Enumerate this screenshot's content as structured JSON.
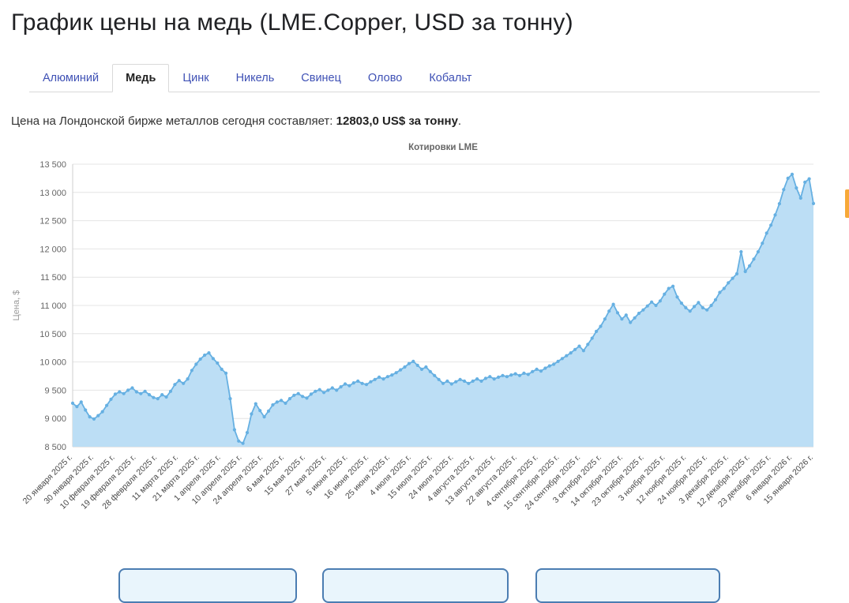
{
  "page": {
    "title": "График цены на медь (LME.Copper, USD за тонну)",
    "intro_prefix": "Цена на Лондонской бирже металлов сегодня составляет: ",
    "intro_bold": "12803,0 US$ за тонну",
    "intro_suffix": "."
  },
  "tabs": [
    {
      "label": "Алюминий",
      "active": false
    },
    {
      "label": "Медь",
      "active": true
    },
    {
      "label": "Цинк",
      "active": false
    },
    {
      "label": "Никель",
      "active": false
    },
    {
      "label": "Свинец",
      "active": false
    },
    {
      "label": "Олово",
      "active": false
    },
    {
      "label": "Кобальт",
      "active": false
    }
  ],
  "footer": {
    "bottom_buttons_count": 3
  },
  "colors": {
    "tab_link": "#3f51b5",
    "edge_marker": "#f7a938",
    "button_border": "#4b7db2"
  },
  "chart_data": {
    "type": "area",
    "title": "Котировки LME",
    "ylabel": "Цена, $",
    "xlabel": "",
    "grid": true,
    "legend": "none",
    "marker": "circle",
    "ylim": [
      8500,
      13500
    ],
    "ytick_step": 500,
    "ytick_labels": [
      "8 500",
      "9 000",
      "9 500",
      "10 000",
      "10 500",
      "11 000",
      "11 500",
      "12 000",
      "12 500",
      "13 000",
      "13 500"
    ],
    "line_color": "#66b0e2",
    "fill_color": "#bcdef5",
    "x_tick_labels": [
      "20 января 2025 г.",
      "30 января 2025 г.",
      "10 февраля 2025 г.",
      "19 февраля 2025 г.",
      "28 февраля 2025 г.",
      "11 марта 2025 г.",
      "21 марта 2025 г.",
      "1 апреля 2025 г.",
      "10 апреля 2025 г.",
      "24 апреля 2025 г.",
      "6 мая 2025 г.",
      "15 мая 2025 г.",
      "27 мая 2025 г.",
      "5 июня 2025 г.",
      "16 июня 2025 г.",
      "25 июня 2025 г.",
      "4 июля 2025 г.",
      "15 июля 2025 г.",
      "24 июля 2025 г.",
      "4 августа 2025 г.",
      "13 августа 2025 г.",
      "22 августа 2025 г.",
      "4 сентября 2025 г.",
      "15 сентября 2025 г.",
      "24 сентября 2025 г.",
      "3 октября 2025 г.",
      "14 октября 2025 г.",
      "23 октября 2025 г.",
      "3 ноября 2025 г.",
      "12 ноября 2025 г.",
      "24 ноября 2025 г.",
      "3 декабря 2025 г.",
      "12 декабря 2025 г.",
      "23 декабря 2025 г.",
      "6 января 2026 г.",
      "15 января 2026 г."
    ],
    "values": [
      9270,
      9210,
      9290,
      9150,
      9030,
      8990,
      9050,
      9120,
      9230,
      9340,
      9430,
      9470,
      9440,
      9500,
      9540,
      9470,
      9440,
      9480,
      9420,
      9370,
      9350,
      9420,
      9380,
      9480,
      9600,
      9670,
      9620,
      9700,
      9850,
      9960,
      10050,
      10120,
      10160,
      10060,
      9980,
      9870,
      9800,
      9350,
      8800,
      8600,
      8560,
      8750,
      9080,
      9260,
      9140,
      9030,
      9130,
      9240,
      9290,
      9320,
      9270,
      9350,
      9410,
      9440,
      9390,
      9360,
      9430,
      9480,
      9510,
      9460,
      9500,
      9540,
      9500,
      9560,
      9610,
      9580,
      9630,
      9660,
      9620,
      9600,
      9650,
      9690,
      9730,
      9700,
      9740,
      9770,
      9810,
      9860,
      9910,
      9970,
      10010,
      9940,
      9870,
      9910,
      9830,
      9760,
      9690,
      9620,
      9660,
      9610,
      9650,
      9690,
      9660,
      9620,
      9660,
      9700,
      9660,
      9710,
      9740,
      9700,
      9730,
      9760,
      9740,
      9770,
      9790,
      9760,
      9800,
      9780,
      9830,
      9870,
      9840,
      9890,
      9930,
      9960,
      10010,
      10060,
      10110,
      10160,
      10220,
      10280,
      10200,
      10310,
      10420,
      10540,
      10630,
      10760,
      10900,
      11020,
      10870,
      10760,
      10830,
      10700,
      10780,
      10860,
      10920,
      10990,
      11060,
      11000,
      11080,
      11200,
      11300,
      11340,
      11150,
      11040,
      10960,
      10900,
      10980,
      11050,
      10960,
      10920,
      11000,
      11100,
      11230,
      11300,
      11400,
      11480,
      11560,
      11950,
      11600,
      11700,
      11820,
      11950,
      12100,
      12280,
      12420,
      12600,
      12800,
      13050,
      13250,
      13320,
      13080,
      12900,
      13180,
      13240,
      12803
    ]
  }
}
